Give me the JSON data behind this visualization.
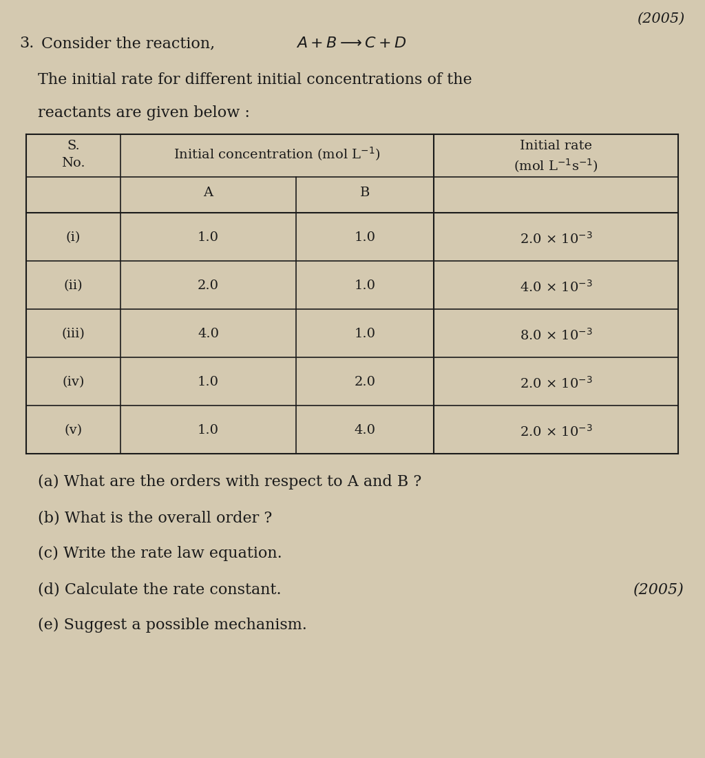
{
  "bg_color": "#d4c9b0",
  "text_color": "#1a1a1a",
  "top_right_text": "(2005)",
  "question_number": "3.",
  "reaction_text": "Consider the reaction,",
  "description_line1": "The initial rate for different initial concentrations of the",
  "description_line2": "reactants are given below :",
  "table": {
    "rows": [
      {
        "no": "(i)",
        "A": "1.0",
        "B": "1.0",
        "rate": "2.0 × 10$^{-3}$"
      },
      {
        "no": "(ii)",
        "A": "2.0",
        "B": "1.0",
        "rate": "4.0 × 10$^{-3}$"
      },
      {
        "no": "(iii)",
        "A": "4.0",
        "B": "1.0",
        "rate": "8.0 × 10$^{-3}$"
      },
      {
        "no": "(iv)",
        "A": "1.0",
        "B": "2.0",
        "rate": "2.0 × 10$^{-3}$"
      },
      {
        "no": "(v)",
        "A": "1.0",
        "B": "4.0",
        "rate": "2.0 × 10$^{-3}$"
      }
    ]
  },
  "questions": [
    "(a) What are the orders with respect to A and B ?",
    "(b) What is the overall order ?",
    "(c) Write the rate law equation.",
    "(d) Calculate the rate constant.",
    "(e) Suggest a possible mechanism."
  ],
  "bottom_right_text": "(2005)"
}
